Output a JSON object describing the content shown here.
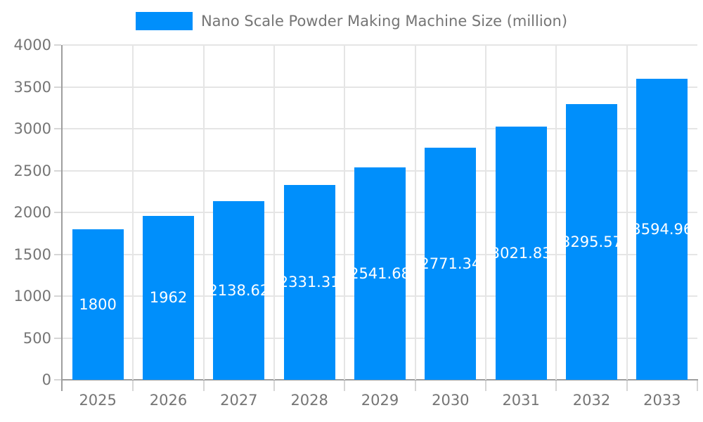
{
  "chart_data": {
    "type": "bar",
    "title": "Nano Scale Powder Making Machine Size (million)",
    "categories": [
      "2025",
      "2026",
      "2027",
      "2028",
      "2029",
      "2030",
      "2031",
      "2032",
      "2033"
    ],
    "series": [
      {
        "name": "Nano Scale Powder Making Machine Size (million)",
        "values": [
          1800,
          1962,
          2138.62,
          2331.31,
          2541.68,
          2771.34,
          3021.83,
          3295.57,
          3594.96
        ]
      }
    ],
    "bar_labels": [
      "1800",
      "1962",
      "2138.62",
      "2331.31",
      "2541.68",
      "2771.34",
      "3021.83",
      "3295.57",
      "3594.96"
    ],
    "xlabel": "",
    "ylabel": "",
    "ylim": [
      0,
      4000
    ],
    "ytick_step": 500,
    "yticks": [
      "0",
      "500",
      "1000",
      "1500",
      "2000",
      "2500",
      "3000",
      "3500",
      "4000"
    ],
    "grid": true,
    "legend_position": "top",
    "colors": {
      "bar": "#008FFB",
      "axis_text": "#757575",
      "bar_label_text": "#FFFFFF",
      "grid_line": "#E5E5E5",
      "axis_line": "#9E9E9E",
      "tick_line": "#D6D6D6",
      "background": "#FFFFFF"
    }
  },
  "legend": {
    "title": "Nano Scale Powder Making Machine Size (million)",
    "swatch_color": "#008FFB"
  }
}
